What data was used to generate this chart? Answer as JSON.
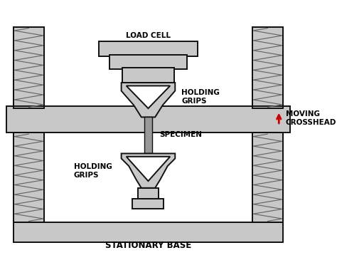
{
  "bg_color": "#ffffff",
  "gray_fill": "#c8c8c8",
  "dark_outline": "#111111",
  "text_color": "#000000",
  "red_color": "#cc0000",
  "lw": 1.4,
  "title_bottom": "STATIONARY BASE",
  "label_load_cell": "LOAD CELL",
  "label_moving_crosshead": "MOVING\nCROSSHEAD",
  "label_holding_grips_top": "HOLDING\nGRIPS",
  "label_holding_grips_bot": "HOLDING\nGRIPS",
  "label_specimen": "SPECIMEN",
  "font_size_labels": 7.5,
  "font_size_title": 8.5
}
